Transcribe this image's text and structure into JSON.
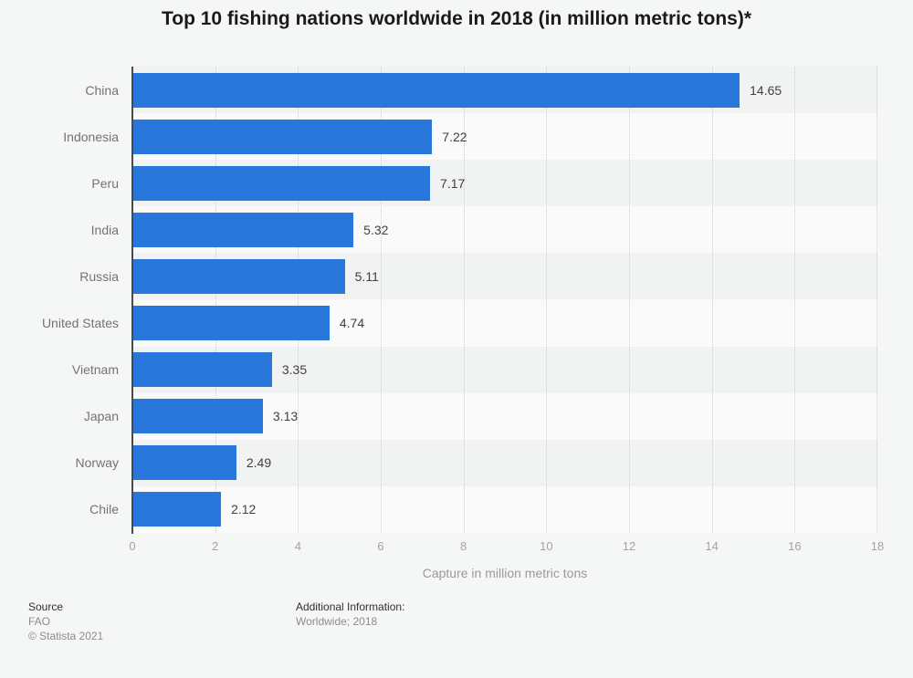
{
  "title": "Top 10 fishing nations worldwide in 2018 (in million metric tons)*",
  "chart_data": {
    "type": "bar",
    "orientation": "horizontal",
    "title": "Top 10 fishing nations worldwide in 2018 (in million metric tons)*",
    "categories": [
      "China",
      "Indonesia",
      "Peru",
      "India",
      "Russia",
      "United States",
      "Vietnam",
      "Japan",
      "Norway",
      "Chile"
    ],
    "values": [
      14.65,
      7.22,
      7.17,
      5.32,
      5.11,
      4.74,
      3.35,
      3.13,
      2.49,
      2.12
    ],
    "value_labels": [
      "14.65",
      "7.22",
      "7.17",
      "5.32",
      "5.11",
      "4.74",
      "3.35",
      "3.13",
      "2.49",
      "2.12"
    ],
    "xlabel": "Capture in million metric tons",
    "ylabel": "",
    "xlim": [
      0,
      18
    ],
    "xticks": [
      0,
      2,
      4,
      6,
      8,
      10,
      12,
      14,
      16,
      18
    ],
    "grid": "vertical-dotted",
    "legend": "none",
    "bar_color": "#2a77dc"
  },
  "footer": {
    "source_label": "Source",
    "source_value": "FAO",
    "copyright": "© Statista 2021",
    "additional_label": "Additional Information:",
    "additional_value": "Worldwide; 2018"
  },
  "colors": {
    "bar": "#2a77dc",
    "background": "#f5f6f6",
    "stripe_odd": "#f1f2f2",
    "stripe_even": "#fafafa",
    "axis_line": "#4a4a4a",
    "gridline": "#cdcdcd",
    "title_text": "#1a1a1a",
    "category_text": "#737373",
    "value_text": "#404040",
    "tick_text": "#a3a3a3"
  }
}
